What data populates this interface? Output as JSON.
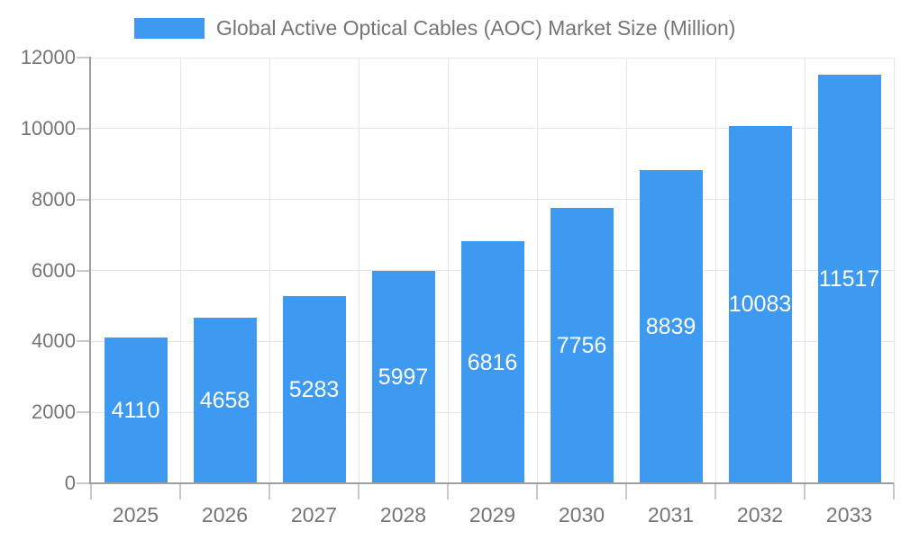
{
  "chart_data": {
    "type": "bar",
    "legend_label": "Global Active Optical Cables (AOC) Market Size (Million)",
    "legend_position": "top",
    "categories": [
      "2025",
      "2026",
      "2027",
      "2028",
      "2029",
      "2030",
      "2031",
      "2032",
      "2033"
    ],
    "values": [
      4110,
      4658,
      5283,
      5997,
      6816,
      7756,
      8839,
      10083,
      11517
    ],
    "xlabel": "",
    "ylabel": "",
    "ylim": [
      0,
      12000
    ],
    "yticks": [
      0,
      2000,
      4000,
      6000,
      8000,
      10000,
      12000
    ],
    "grid": true,
    "colors": {
      "bar": "#3d9af0",
      "axis_line": "#9e9e9e",
      "gridline": "#e6e6e6",
      "tick": "#c9c9c9",
      "label_text": "#757575",
      "value_text": "#ffffff",
      "background": "#ffffff"
    }
  }
}
